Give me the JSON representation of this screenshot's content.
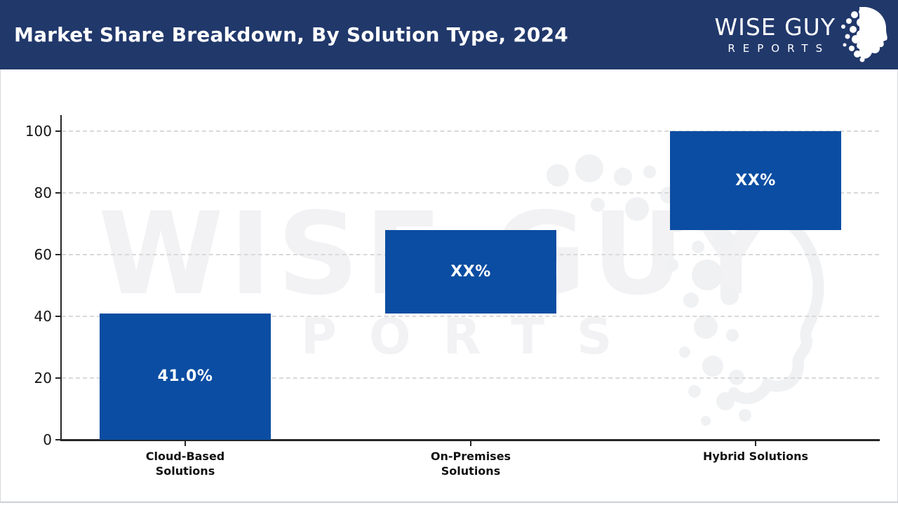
{
  "header": {
    "title": "Market Share Breakdown, By Solution Type, 2024",
    "logo": {
      "line1": "WISE GUY",
      "line2": "REPORTS"
    }
  },
  "watermark": {
    "line1": "WISE GUY",
    "line2": "REPORTS"
  },
  "icons": {
    "logo_face": "face-profile-dots-icon",
    "watermark_face": "face-profile-dots-icon"
  },
  "colors": {
    "header_bg": "#21386B",
    "bar": "#0B4DA2",
    "grid": "#D9D9D9",
    "axis": "#262626",
    "watermark": "#F2F2F4",
    "title_text": "#FFFFFF"
  },
  "chart_data": {
    "type": "bar",
    "subtype": "stacked-breakdown-waterfall",
    "title": "Market Share Breakdown, By Solution Type, 2024",
    "categories": [
      "Cloud-Based\nSolutions",
      "On-Premises\nSolutions",
      "Hybrid Solutions"
    ],
    "segments": [
      {
        "category": "Cloud-Based Solutions",
        "start": 0,
        "end": 41,
        "label": "41.0%"
      },
      {
        "category": "On-Premises Solutions",
        "start": 41,
        "end": 68,
        "label": "XX%"
      },
      {
        "category": "Hybrid Solutions",
        "start": 68,
        "end": 100,
        "label": "XX%"
      }
    ],
    "yticks": [
      0,
      20,
      40,
      60,
      80,
      100
    ],
    "ylim": [
      0,
      105
    ],
    "xlabel": "",
    "ylabel": "",
    "grid": "dashed-horizontal",
    "legend": "none",
    "bar_color": "#0B4DA2"
  }
}
